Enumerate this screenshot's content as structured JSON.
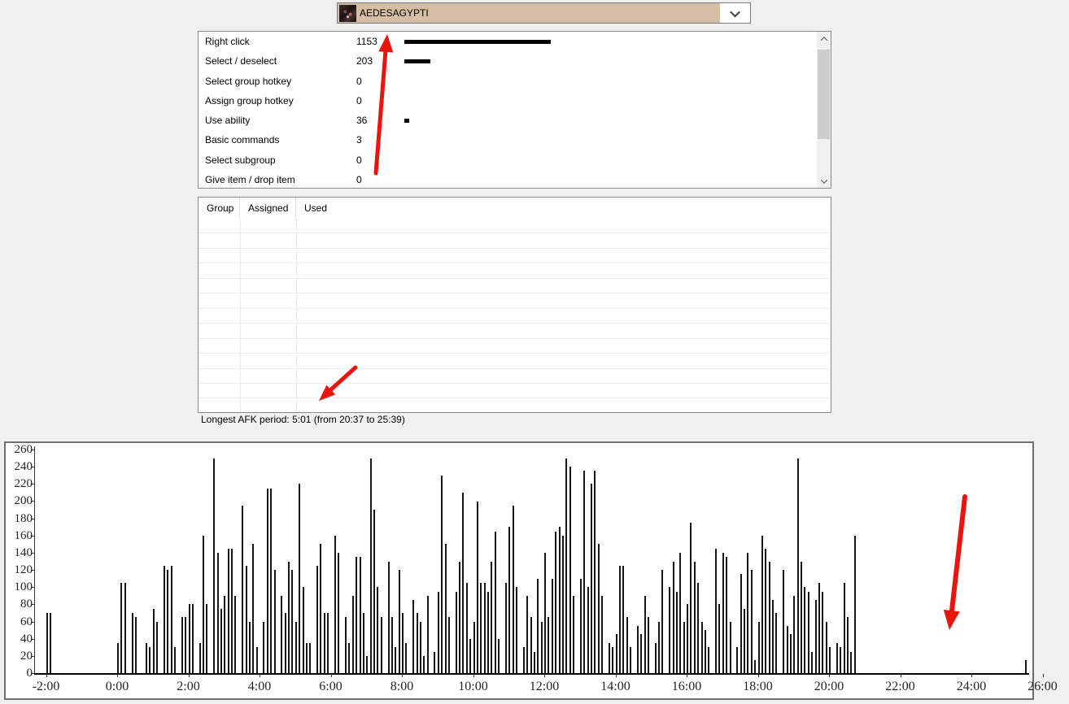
{
  "player_dropdown": {
    "selected": "AEDESAGYPTI",
    "icon": "player-race-icon"
  },
  "action_stats": {
    "rows": [
      {
        "label": "Right click",
        "value": 1153
      },
      {
        "label": "Select / deselect",
        "value": 203
      },
      {
        "label": "Select group hotkey",
        "value": 0
      },
      {
        "label": "Assign group hotkey",
        "value": 0
      },
      {
        "label": "Use ability",
        "value": 36
      },
      {
        "label": "Basic commands",
        "value": 3
      },
      {
        "label": "Select subgroup",
        "value": 0
      },
      {
        "label": "Give item / drop item",
        "value": 0
      }
    ]
  },
  "hotkey_table": {
    "columns": [
      "Group",
      "Assigned",
      "Used"
    ],
    "rows": [],
    "visible_empty_rows": 13
  },
  "afk_note": "Longest AFK period: 5:01 (from 20:37 to 25:39)",
  "colors": {
    "annotation_red": "#ea140e",
    "dropdown_fill": "#d6bea4",
    "stat_bar": "#000000"
  },
  "annotations": {
    "arrows": [
      {
        "name": "arrow-to-right-click-count",
        "direction": "up"
      },
      {
        "name": "arrow-to-empty-hotkey-rows",
        "direction": "down-left"
      },
      {
        "name": "arrow-to-chart-afk-gap",
        "direction": "down"
      }
    ]
  },
  "chart_data": {
    "type": "bar",
    "ylim": [
      0,
      260
    ],
    "y_tick_labels": [
      "260",
      "240",
      "220",
      "200",
      "180",
      "160",
      "140",
      "120",
      "100",
      "80",
      "60",
      "40",
      "20",
      "0"
    ],
    "x_tick_labels": [
      "-2:00",
      "0:00",
      "2:00",
      "4:00",
      "6:00",
      "8:00",
      "10:00",
      "12:00",
      "14:00",
      "16:00",
      "18:00",
      "20:00",
      "22:00",
      "24:00",
      "26:00"
    ],
    "start_time": "-2:00",
    "bucket_seconds": 6,
    "values": [
      70,
      70,
      0,
      0,
      0,
      0,
      0,
      0,
      0,
      0,
      0,
      0,
      0,
      0,
      0,
      0,
      0,
      0,
      0,
      0,
      35,
      105,
      105,
      0,
      70,
      65,
      0,
      0,
      35,
      30,
      75,
      60,
      0,
      125,
      120,
      125,
      30,
      0,
      65,
      65,
      80,
      80,
      0,
      35,
      160,
      80,
      0,
      250,
      140,
      75,
      90,
      145,
      145,
      90,
      0,
      195,
      125,
      60,
      150,
      30,
      0,
      60,
      215,
      215,
      120,
      0,
      90,
      70,
      130,
      120,
      60,
      220,
      100,
      35,
      35,
      0,
      125,
      150,
      70,
      70,
      0,
      160,
      140,
      0,
      65,
      35,
      90,
      135,
      135,
      70,
      20,
      250,
      190,
      100,
      65,
      0,
      130,
      65,
      30,
      120,
      70,
      35,
      0,
      85,
      70,
      60,
      20,
      90,
      0,
      25,
      95,
      230,
      150,
      65,
      0,
      95,
      130,
      210,
      105,
      40,
      60,
      200,
      105,
      105,
      95,
      130,
      165,
      40,
      0,
      105,
      170,
      195,
      100,
      0,
      30,
      90,
      65,
      25,
      110,
      60,
      140,
      65,
      110,
      165,
      170,
      160,
      250,
      240,
      90,
      0,
      110,
      235,
      100,
      220,
      235,
      150,
      90,
      0,
      35,
      30,
      45,
      125,
      125,
      65,
      30,
      0,
      55,
      45,
      90,
      65,
      0,
      35,
      60,
      120,
      0,
      100,
      130,
      95,
      140,
      60,
      80,
      175,
      130,
      105,
      60,
      50,
      30,
      0,
      145,
      80,
      140,
      135,
      60,
      0,
      30,
      115,
      75,
      140,
      120,
      15,
      60,
      160,
      145,
      130,
      85,
      70,
      0,
      120,
      55,
      45,
      90,
      250,
      130,
      100,
      95,
      25,
      85,
      105,
      95,
      60,
      30,
      0,
      35,
      30,
      105,
      65,
      25,
      160,
      0,
      0,
      0,
      0,
      0,
      0,
      0,
      0,
      0,
      0,
      0,
      0,
      0,
      0,
      0,
      0,
      0,
      0,
      0,
      0,
      0,
      0,
      0,
      0,
      0,
      0,
      0,
      0,
      0,
      0,
      0,
      0,
      0,
      0,
      0,
      0,
      0,
      0,
      0,
      0,
      0,
      0,
      0,
      0,
      0,
      0,
      0,
      15,
      0,
      0
    ]
  }
}
